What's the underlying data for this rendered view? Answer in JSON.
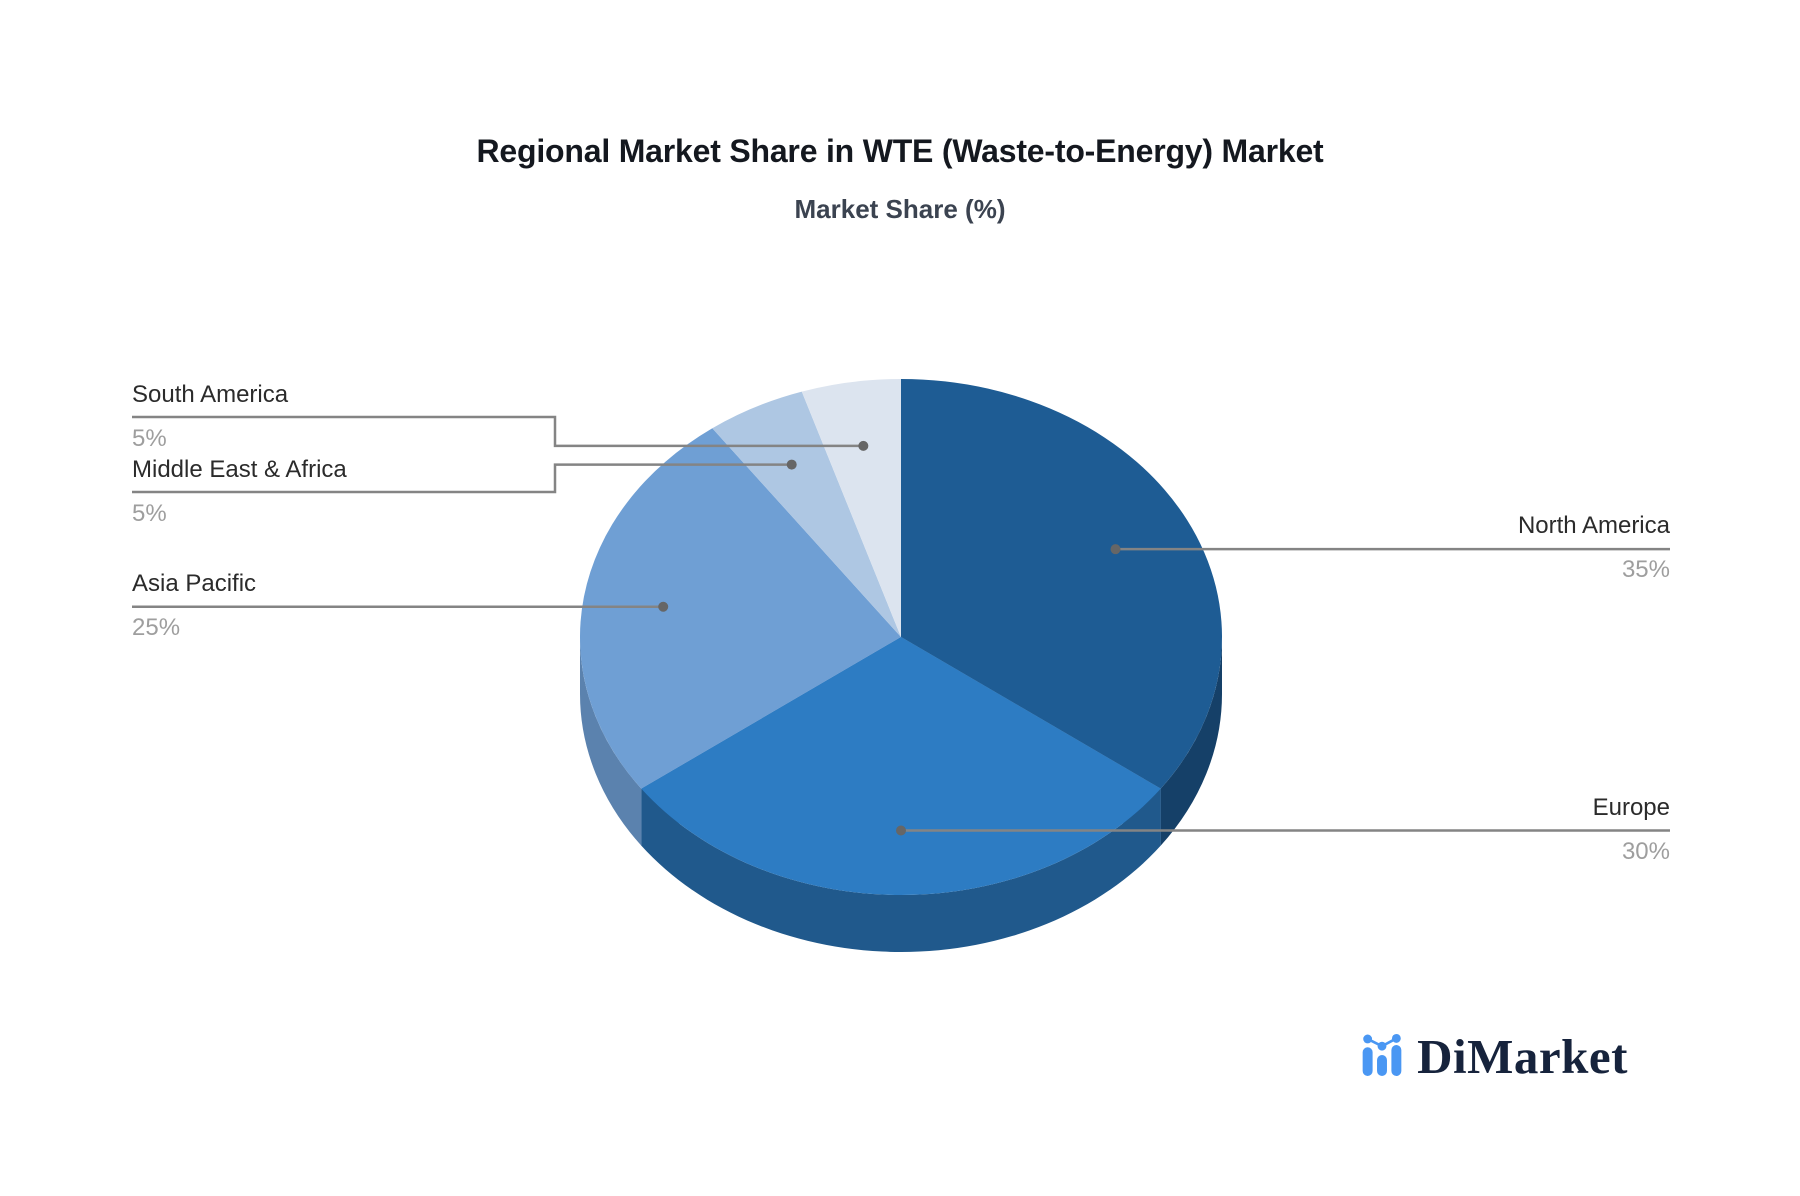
{
  "header": {
    "title": "Regional Market Share in WTE (Waste-to-Energy) Market",
    "subtitle": "Market Share (%)"
  },
  "chart_data": {
    "type": "pie",
    "style": "3d",
    "unit": "percent",
    "start_angle": "12-o-clock",
    "direction": "clockwise",
    "legend_position": "callout-labels",
    "slices": [
      {
        "label": "North America",
        "value": 35,
        "display": "35%",
        "color": "#1e5c94"
      },
      {
        "label": "Europe",
        "value": 30,
        "display": "30%",
        "color": "#2d7cc3"
      },
      {
        "label": "Asia Pacific",
        "value": 25,
        "display": "25%",
        "color": "#6f9fd4"
      },
      {
        "label": "Middle East & Africa",
        "value": 5,
        "display": "5%",
        "color": "#aec7e3"
      },
      {
        "label": "South America",
        "value": 5,
        "display": "5%",
        "color": "#dce4ef"
      }
    ],
    "leader_line_color": "#848484",
    "leader_dot_color": "#666666",
    "label_text_color": "#2b2b2b",
    "value_text_color": "#9e9e9e"
  },
  "logo": {
    "text": "DiMarket",
    "icon": "bar-chart-logo-icon",
    "accent_color": "#4a97f3",
    "text_color": "#16233c"
  }
}
